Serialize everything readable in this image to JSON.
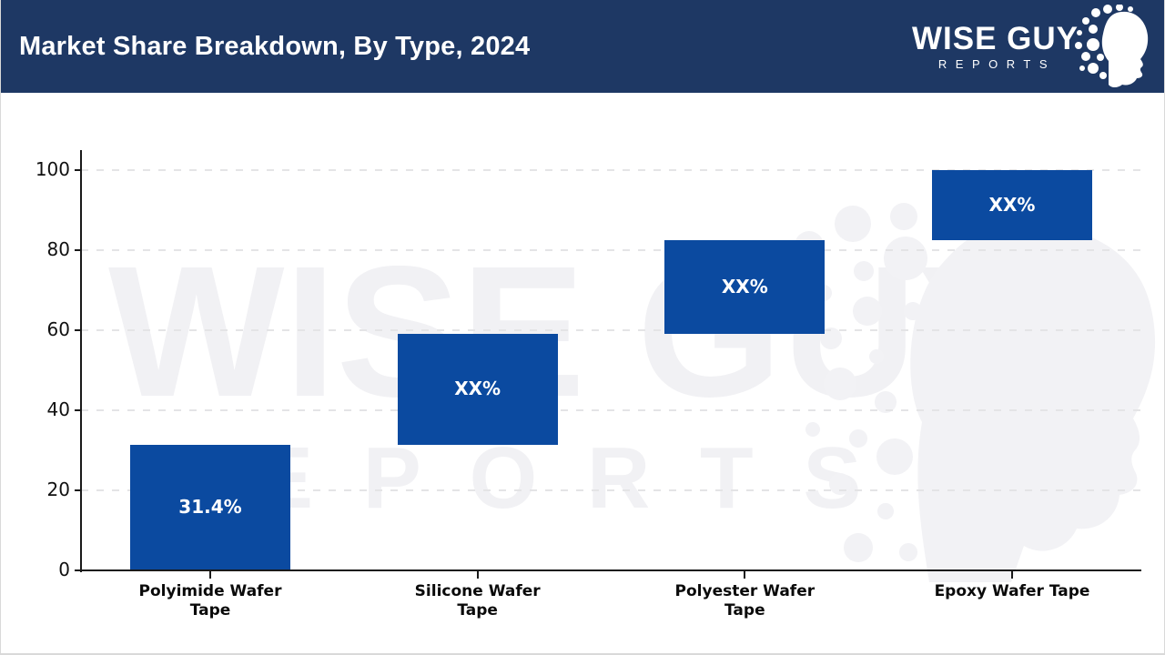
{
  "header": {
    "title": "Market Share Breakdown, By Type, 2024",
    "logo": {
      "wordmark": "WISE GUY",
      "subtext": "REPORTS"
    }
  },
  "watermark": {
    "wordmark": "WISE GUY",
    "subtext": "R E P O R T S"
  },
  "chart_data": {
    "type": "bar",
    "subtype": "floating_segment_bars",
    "title": "Market Share Breakdown, By Type, 2024",
    "categories": [
      "Polyimide Wafer Tape",
      "Silicone Wafer Tape",
      "Polyester Wafer Tape",
      "Epoxy Wafer Tape"
    ],
    "category_lines": [
      [
        "Polyimide Wafer",
        "Tape"
      ],
      [
        "Silicone Wafer",
        "Tape"
      ],
      [
        "Polyester Wafer",
        "Tape"
      ],
      [
        "Epoxy Wafer Tape"
      ]
    ],
    "series": [
      {
        "name": "Polyimide Wafer Tape",
        "label": "31.4%",
        "segment_start": 0,
        "segment_end": 31.4
      },
      {
        "name": "Silicone Wafer Tape",
        "label": "XX%",
        "segment_start": 31.4,
        "segment_end": 59
      },
      {
        "name": "Polyester Wafer Tape",
        "label": "XX%",
        "segment_start": 59,
        "segment_end": 82.5
      },
      {
        "name": "Epoxy Wafer Tape",
        "label": "XX%",
        "segment_start": 82.5,
        "segment_end": 100
      }
    ],
    "y_ticks": [
      0,
      20,
      40,
      60,
      80,
      100
    ],
    "ylim": [
      0,
      100
    ],
    "xlabel": "",
    "ylabel": "",
    "grid": "horizontal dashed",
    "legend": "none",
    "colors": {
      "bar": "#0B4AA0",
      "bar_label": "#FFFFFF",
      "header_navy": "#1E3864",
      "axis": "#1A1A1A",
      "gridline": "#E4E4E6",
      "watermark": "#F1F1F4"
    }
  }
}
